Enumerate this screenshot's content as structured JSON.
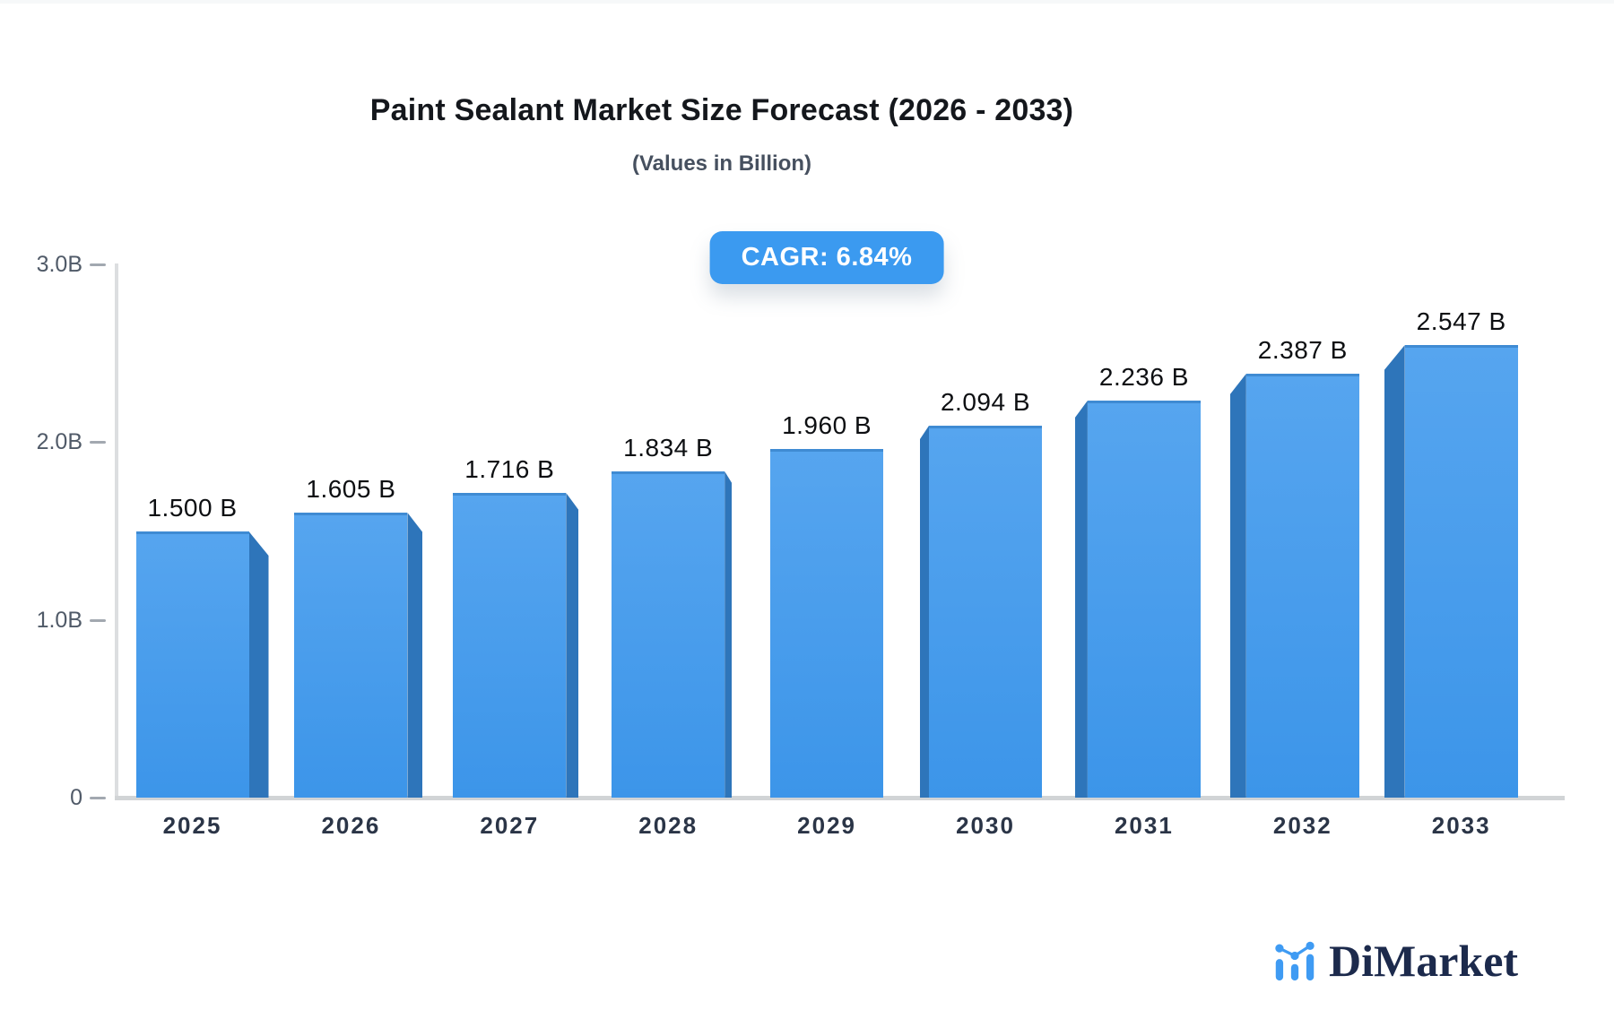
{
  "logo": {
    "text": "DiMarket",
    "icon": "mini-bar-line-chart-icon"
  },
  "colors": {
    "title": "#14171c",
    "subtitle": "#46505f",
    "badge": "#3b9af0",
    "badge_text": "#ffffff",
    "bar_face_top": "#56a5ef",
    "bar_face_bottom": "#3c95e9",
    "bar_top_edge": "#3f8bd3",
    "bar_side": "#2e75ba",
    "axis_line": "#d4d6d8",
    "tick_label": "#505a68",
    "year_label": "#2b3547",
    "value_label": "#0d0f12",
    "logo_text": "#1c2a4c",
    "logo_icon": "#3f9bf3"
  },
  "chart_data": {
    "type": "bar",
    "title": "Paint Sealant Market Size Forecast (2026 - 2033)",
    "subtitle": "(Values in Billion)",
    "annotation": "CAGR: 6.84%",
    "categories": [
      "2025",
      "2026",
      "2027",
      "2028",
      "2029",
      "2030",
      "2031",
      "2032",
      "2033"
    ],
    "values": [
      1.5,
      1.605,
      1.716,
      1.834,
      1.96,
      2.094,
      2.236,
      2.387,
      2.547
    ],
    "value_labels": [
      "1.500 B",
      "1.605 B",
      "1.716 B",
      "1.834 B",
      "1.960 B",
      "2.094 B",
      "2.236 B",
      "2.387 B",
      "2.547 B"
    ],
    "xlabel": "",
    "ylabel": "",
    "ylim": [
      0,
      3.0
    ],
    "y_ticks": [
      {
        "label": "3.0B",
        "value": 3.0
      },
      {
        "label": "2.0B",
        "value": 2.0
      },
      {
        "label": "1.0B",
        "value": 1.0
      },
      {
        "label": "0",
        "value": 0
      }
    ],
    "grid": false,
    "legend": null,
    "bar_style": "3d-perspective"
  }
}
